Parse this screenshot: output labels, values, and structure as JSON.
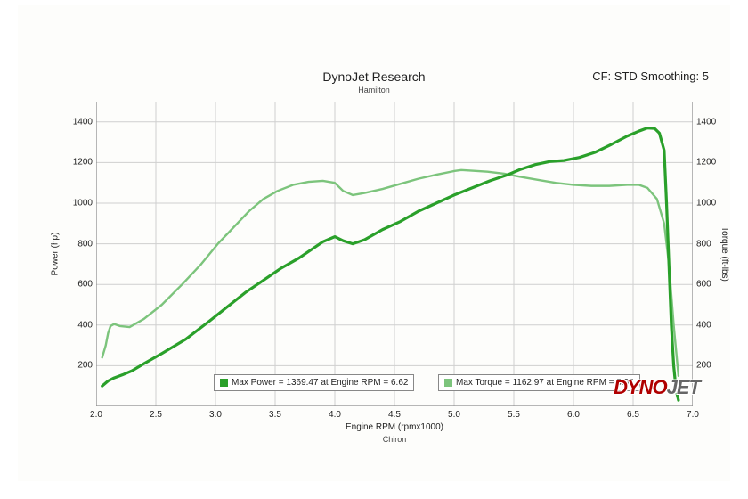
{
  "header": {
    "title": "DynoJet Research",
    "subtitle": "Hamilton",
    "cf_text": "CF: STD Smoothing: 5"
  },
  "logo": {
    "part1": "DYNO",
    "part2": "JET"
  },
  "chart": {
    "type": "line",
    "background_color": "#fdfdfb",
    "grid_color": "#cfcfcf",
    "axis_color": "#888888",
    "xlabel": "Engine RPM (rpmx1000)",
    "xsub": "Chiron",
    "ylabel_left": "Power (hp)",
    "ylabel_right": "Torque (ft-lbs)",
    "xlim": [
      2.0,
      7.0
    ],
    "ylim": [
      0,
      1500
    ],
    "x_ticks": [
      2.0,
      2.5,
      3.0,
      3.5,
      4.0,
      4.5,
      5.0,
      5.5,
      6.0,
      6.5,
      7.0
    ],
    "y_ticks": [
      200,
      400,
      600,
      800,
      1000,
      1200,
      1400
    ],
    "series": {
      "power": {
        "color": "#2aa02a",
        "width": 3.2,
        "points": [
          [
            2.05,
            100
          ],
          [
            2.1,
            125
          ],
          [
            2.15,
            140
          ],
          [
            2.22,
            155
          ],
          [
            2.3,
            175
          ],
          [
            2.4,
            210
          ],
          [
            2.55,
            260
          ],
          [
            2.75,
            330
          ],
          [
            2.95,
            420
          ],
          [
            3.1,
            490
          ],
          [
            3.25,
            560
          ],
          [
            3.4,
            620
          ],
          [
            3.55,
            680
          ],
          [
            3.7,
            730
          ],
          [
            3.8,
            770
          ],
          [
            3.9,
            810
          ],
          [
            4.0,
            835
          ],
          [
            4.07,
            815
          ],
          [
            4.15,
            800
          ],
          [
            4.25,
            820
          ],
          [
            4.4,
            870
          ],
          [
            4.55,
            910
          ],
          [
            4.7,
            960
          ],
          [
            4.85,
            1000
          ],
          [
            5.0,
            1040
          ],
          [
            5.15,
            1075
          ],
          [
            5.3,
            1110
          ],
          [
            5.45,
            1140
          ],
          [
            5.55,
            1165
          ],
          [
            5.68,
            1190
          ],
          [
            5.8,
            1205
          ],
          [
            5.92,
            1210
          ],
          [
            6.05,
            1225
          ],
          [
            6.18,
            1250
          ],
          [
            6.32,
            1290
          ],
          [
            6.45,
            1330
          ],
          [
            6.55,
            1355
          ],
          [
            6.62,
            1370
          ],
          [
            6.68,
            1368
          ],
          [
            6.72,
            1345
          ],
          [
            6.76,
            1260
          ],
          [
            6.78,
            1000
          ],
          [
            6.8,
            700
          ],
          [
            6.82,
            400
          ],
          [
            6.84,
            200
          ],
          [
            6.86,
            80
          ],
          [
            6.88,
            30
          ]
        ]
      },
      "torque": {
        "color": "#7cc47c",
        "width": 2.4,
        "points": [
          [
            2.05,
            240
          ],
          [
            2.08,
            300
          ],
          [
            2.1,
            360
          ],
          [
            2.12,
            395
          ],
          [
            2.15,
            405
          ],
          [
            2.2,
            395
          ],
          [
            2.28,
            390
          ],
          [
            2.4,
            430
          ],
          [
            2.55,
            500
          ],
          [
            2.72,
            600
          ],
          [
            2.88,
            700
          ],
          [
            3.02,
            800
          ],
          [
            3.15,
            880
          ],
          [
            3.28,
            960
          ],
          [
            3.4,
            1020
          ],
          [
            3.52,
            1060
          ],
          [
            3.65,
            1090
          ],
          [
            3.78,
            1105
          ],
          [
            3.9,
            1110
          ],
          [
            4.0,
            1100
          ],
          [
            4.07,
            1060
          ],
          [
            4.15,
            1040
          ],
          [
            4.25,
            1050
          ],
          [
            4.4,
            1070
          ],
          [
            4.55,
            1095
          ],
          [
            4.7,
            1120
          ],
          [
            4.85,
            1140
          ],
          [
            5.0,
            1158
          ],
          [
            5.06,
            1163
          ],
          [
            5.15,
            1160
          ],
          [
            5.28,
            1155
          ],
          [
            5.42,
            1145
          ],
          [
            5.55,
            1130
          ],
          [
            5.7,
            1115
          ],
          [
            5.85,
            1100
          ],
          [
            6.0,
            1090
          ],
          [
            6.15,
            1085
          ],
          [
            6.3,
            1085
          ],
          [
            6.45,
            1090
          ],
          [
            6.55,
            1090
          ],
          [
            6.62,
            1075
          ],
          [
            6.7,
            1020
          ],
          [
            6.76,
            900
          ],
          [
            6.8,
            700
          ],
          [
            6.84,
            400
          ],
          [
            6.88,
            150
          ]
        ]
      }
    }
  },
  "legend": {
    "power": {
      "swatch": "#2aa02a",
      "text": "Max Power = 1369.47 at Engine RPM = 6.62"
    },
    "torque": {
      "swatch": "#7cc47c",
      "text": "Max Torque = 1162.97 at Engine RPM = 5.06"
    }
  }
}
